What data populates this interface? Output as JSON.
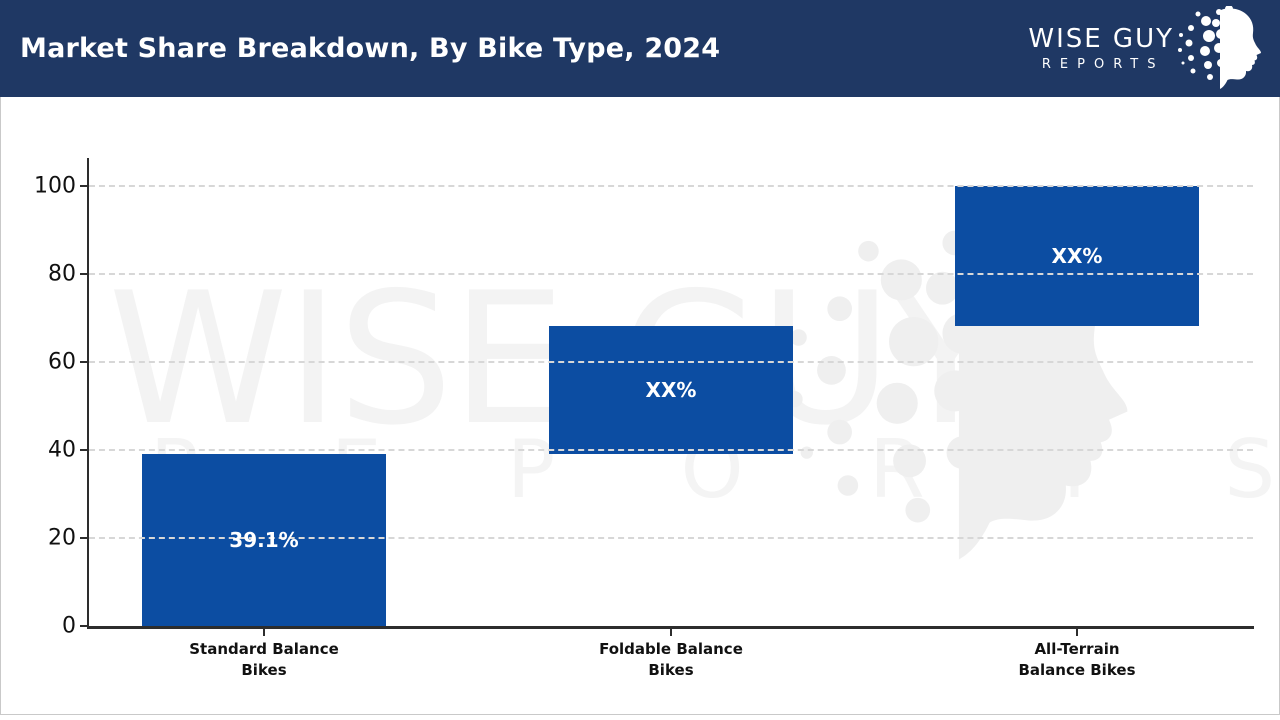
{
  "header": {
    "title": "Market Share Breakdown, By Bike Type, 2024",
    "bg_color": "#1f3864",
    "logo": {
      "line1": "WISE GUY",
      "line2": "REPORTS"
    }
  },
  "watermark": {
    "line1": "WISE GUY",
    "line2": "R E P O R T S"
  },
  "chart_data": {
    "type": "bar",
    "subtype": "waterfall",
    "title": "Market Share Breakdown, By Bike Type, 2024",
    "categories": [
      "Standard Balance\nBikes",
      "Foldable Balance\nBikes",
      "All-Terrain\nBalance Bikes"
    ],
    "segments": [
      {
        "category": "Standard Balance Bikes",
        "start": 0,
        "end": 39.1,
        "label": "39.1%"
      },
      {
        "category": "Foldable Balance Bikes",
        "start": 39.1,
        "end": 68.2,
        "label": "XX%"
      },
      {
        "category": "All-Terrain Balance Bikes",
        "start": 68.2,
        "end": 100,
        "label": "XX%"
      }
    ],
    "bar_color": "#0c4da2",
    "bar_label_color": "#ffffff",
    "yticks": [
      0,
      20,
      40,
      60,
      80,
      100
    ],
    "ylim": [
      0,
      100
    ],
    "grid": "horizontal-dashed",
    "legend": "none"
  }
}
